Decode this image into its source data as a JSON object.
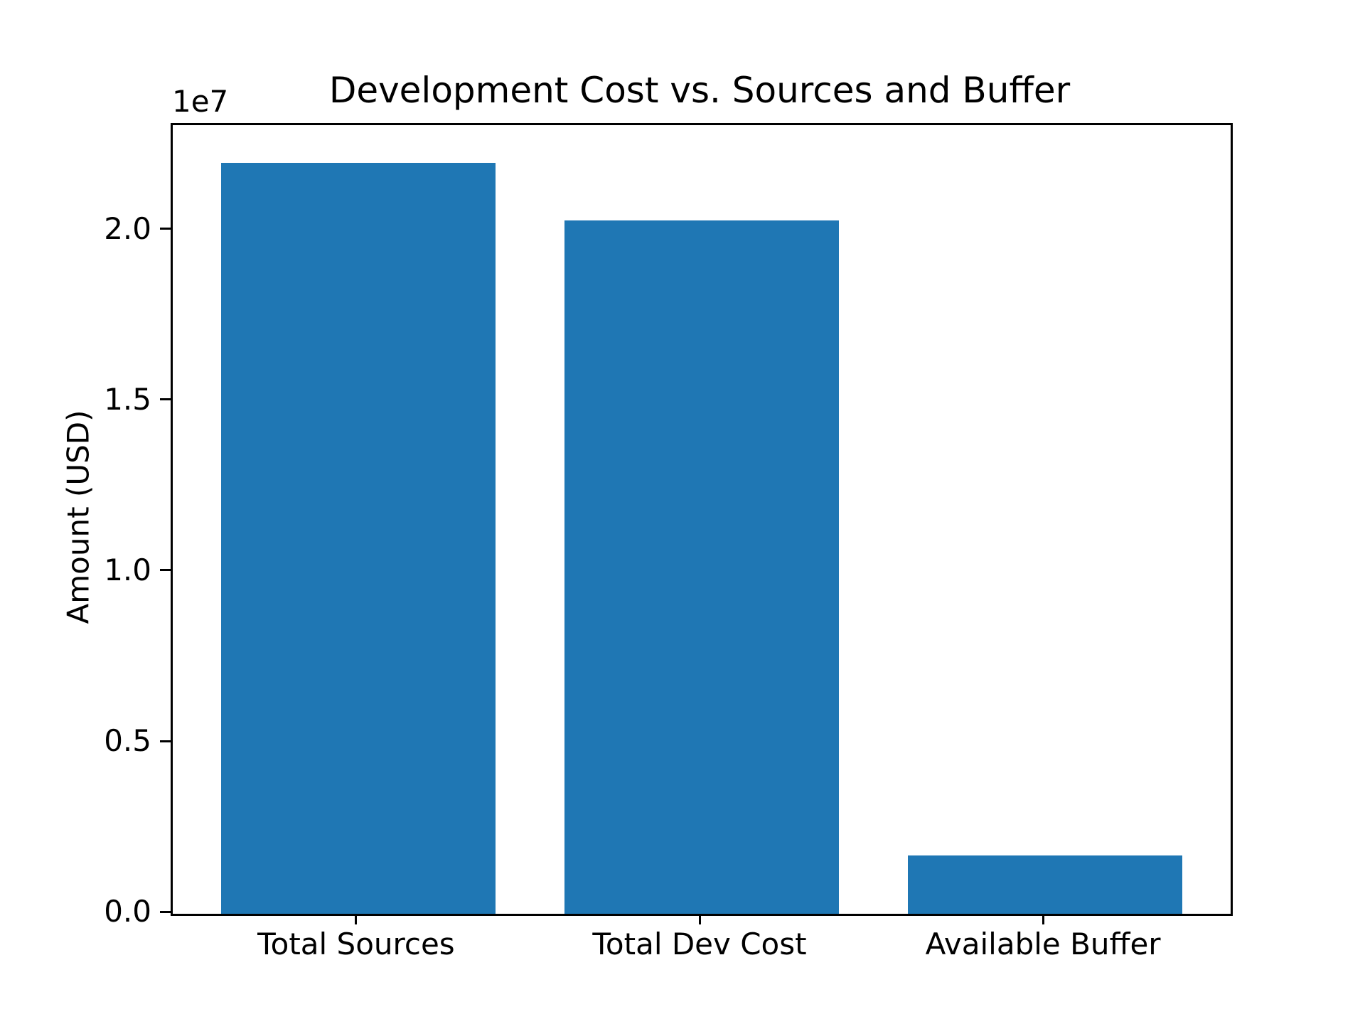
{
  "chart_data": {
    "type": "bar",
    "title": "Development Cost vs. Sources and Buffer",
    "categories": [
      "Total Sources",
      "Total Dev Cost",
      "Available Buffer"
    ],
    "values": [
      22000000,
      20300000,
      1700000
    ],
    "xlabel": "",
    "ylabel": "Amount (USD)",
    "ylim": [
      0,
      23100000
    ],
    "yticks": [
      0.0,
      0.5,
      1.0,
      1.5,
      2.0
    ],
    "ytick_scale_label": "1e7",
    "ytick_scale": 10000000,
    "bar_color": "#1f77b4",
    "axis_color": "#000000",
    "background_color": "#ffffff",
    "grid": false,
    "legend_position": "none",
    "bar_width_fraction": 0.8
  }
}
